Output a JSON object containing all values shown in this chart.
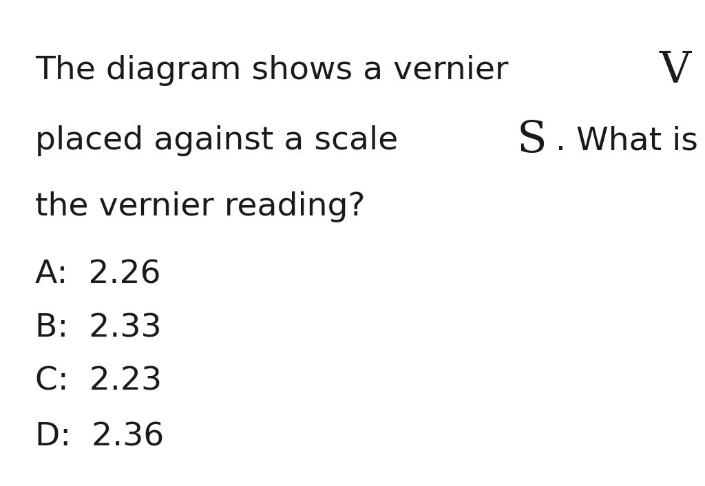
{
  "background_color": "#ffffff",
  "text_color": "#1a1a1a",
  "question_line1_normal": "The diagram shows a vernier ",
  "question_line1_special": "V",
  "question_line2_normal1": "placed against a scale ",
  "question_line2_special": "S",
  "question_line2_normal2": ". What is",
  "question_line3": "the vernier reading?",
  "options": [
    "A:  2.26",
    "B:  2.33",
    "C:  2.23",
    "D:  2.36"
  ],
  "question_fontsize": 34,
  "special_fontsize": 46,
  "option_fontsize": 34,
  "fig_width": 10.24,
  "fig_height": 7.06
}
